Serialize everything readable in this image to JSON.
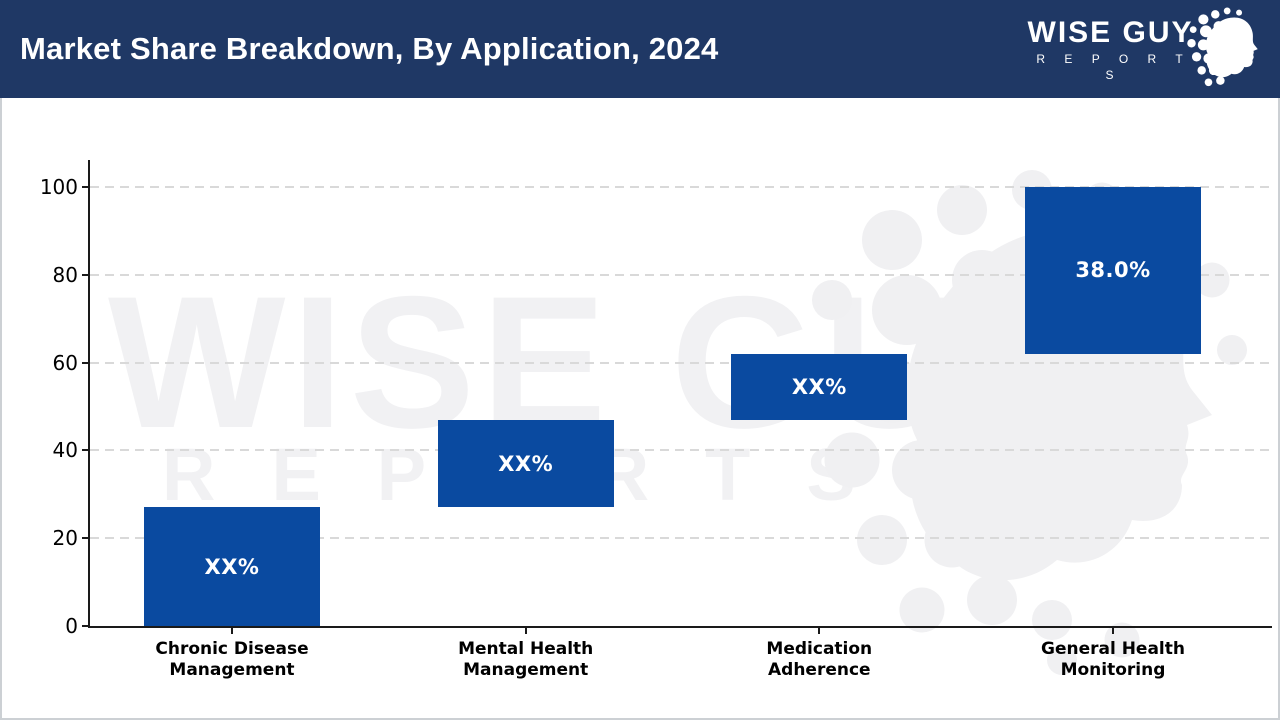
{
  "header": {
    "title": "Market Share Breakdown, By Application, 2024",
    "logo_line1": "WISE GUY",
    "logo_line2": "R E P O R T S",
    "bg_color": "#1F3865"
  },
  "watermark": {
    "line1": "WISE GUY",
    "line2": "REPORTS"
  },
  "page": {
    "background": "#FFFFFF",
    "border_color": "#CCD0D4"
  },
  "chart_data": {
    "type": "bar",
    "variant": "waterfall",
    "title": "Market Share Breakdown, By Application, 2024",
    "categories": [
      "Chronic Disease Management",
      "Mental Health Management",
      "Medication Adherence",
      "General Health Monitoring"
    ],
    "categories_lines": [
      [
        "Chronic Disease",
        "Management"
      ],
      [
        "Mental Health",
        "Management"
      ],
      [
        "Medication",
        "Adherence"
      ],
      [
        "General Health",
        "Monitoring"
      ]
    ],
    "segments": [
      {
        "start": 0,
        "end": 27,
        "value": 27
      },
      {
        "start": 27,
        "end": 47,
        "value": 20
      },
      {
        "start": 47,
        "end": 62,
        "value": 15
      },
      {
        "start": 62,
        "end": 100,
        "value": 38
      }
    ],
    "bar_labels": [
      "XX%",
      "XX%",
      "XX%",
      "38.0%"
    ],
    "yticks": [
      0,
      20,
      40,
      60,
      80,
      100
    ],
    "ylim": [
      0,
      100
    ],
    "xlabel": "",
    "ylabel": "",
    "legend": null,
    "grid": "horizontal-dashed",
    "colors": {
      "bar": "#0A4AA0",
      "grid": "#D9D9D9",
      "axis": "#1A1A1A",
      "bar_label_text": "#FFFFFF"
    }
  }
}
